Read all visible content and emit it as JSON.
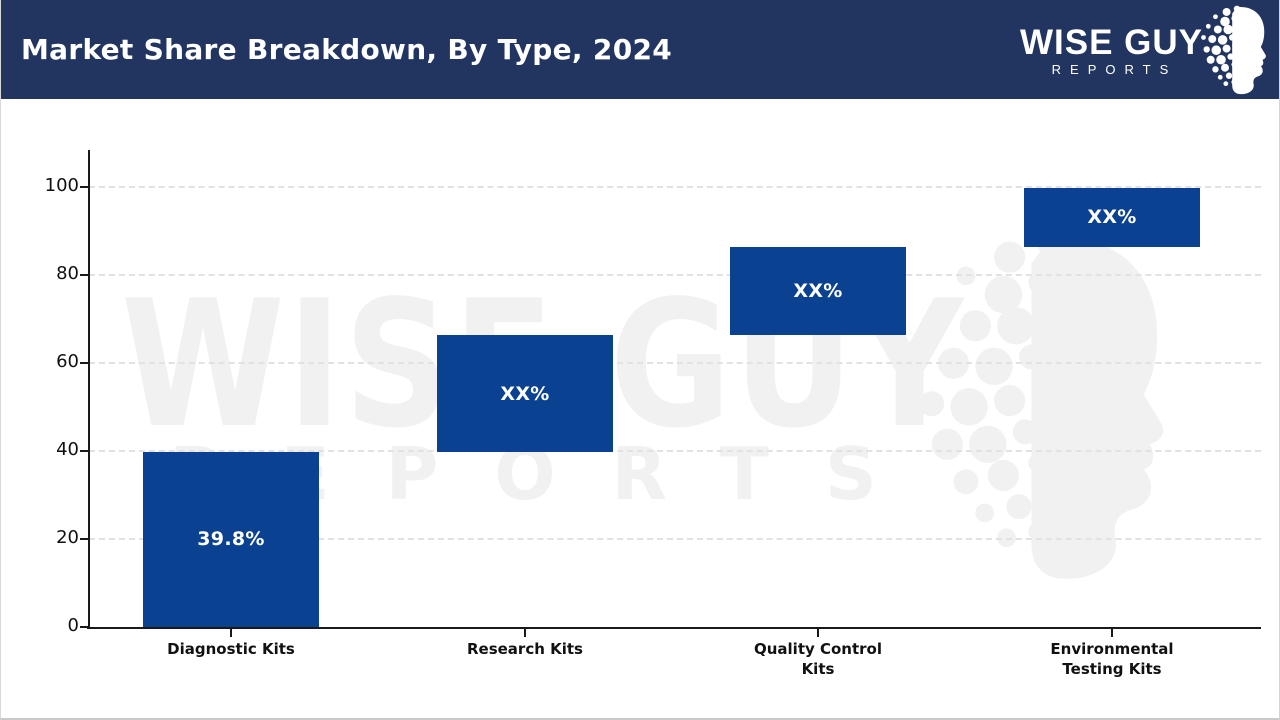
{
  "header": {
    "title": "Market Share Breakdown, By Type, 2024",
    "logo": {
      "line1": "WISE GUY",
      "line2": "REPORTS"
    },
    "bg_color": "#223561"
  },
  "watermark": {
    "line1": "WISE GUY",
    "line2": "REPORTS"
  },
  "colors": {
    "header_bg": "#223561",
    "bar": "#0a4191",
    "grid": "#e2e2e2",
    "axis": "#1a1a1a",
    "watermark": "#f1f1f1"
  },
  "chart_data": {
    "type": "bar",
    "subtype": "waterfall",
    "title": "Market Share Breakdown, By Type, 2024",
    "categories": [
      [
        "Diagnostic Kits"
      ],
      [
        "Research Kits"
      ],
      [
        "Quality Control",
        "Kits"
      ],
      [
        "Environmental",
        "Testing Kits"
      ]
    ],
    "segments": [
      {
        "category": "Diagnostic Kits",
        "start": 0,
        "end": 39.8,
        "label": "39.8%"
      },
      {
        "category": "Research Kits",
        "start": 39.8,
        "end": 66.3,
        "label": "XX%"
      },
      {
        "category": "Quality Control Kits",
        "start": 66.3,
        "end": 86.4,
        "label": "XX%"
      },
      {
        "category": "Environmental Testing Kits",
        "start": 86.4,
        "end": 99.8,
        "label": "XX%"
      }
    ],
    "ylim": [
      0,
      105
    ],
    "yticks": [
      0,
      20,
      40,
      60,
      80,
      100
    ],
    "xlabel": "",
    "ylabel": "",
    "grid": "horizontal-dashed",
    "legend": "none",
    "bar_color": "#0a4191",
    "value_label_color": "#ffffff"
  }
}
